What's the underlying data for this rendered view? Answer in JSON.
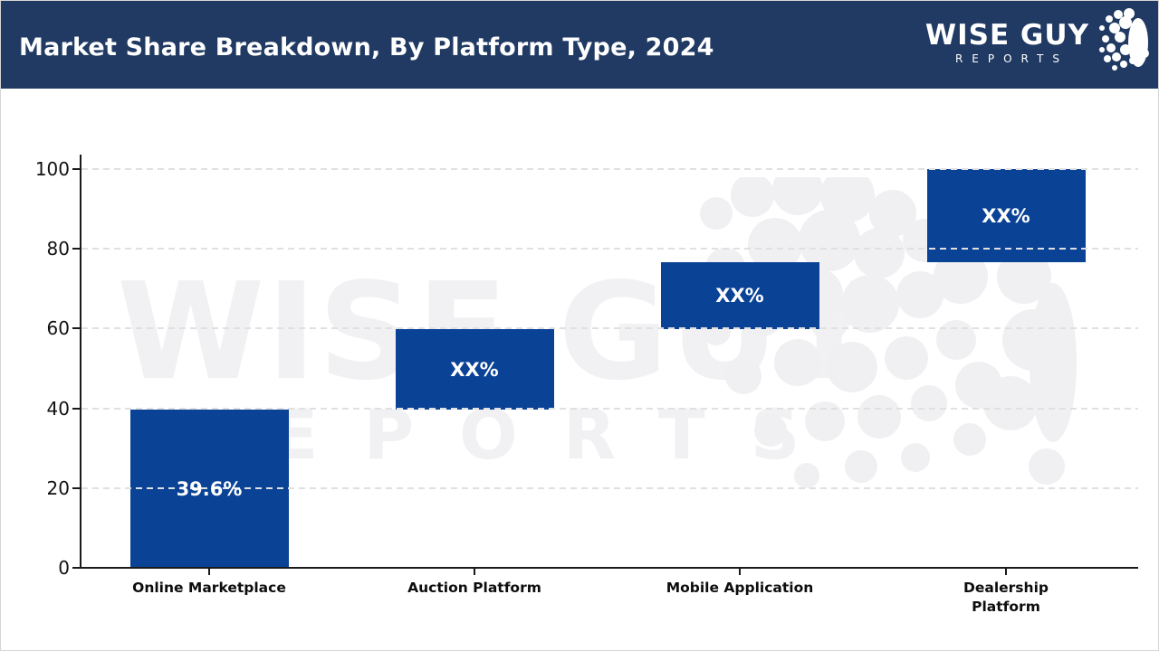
{
  "header": {
    "title": "Market Share Breakdown, By Platform Type, 2024",
    "bg_color": "#203a63",
    "logo": {
      "name": "Wise Guy Reports",
      "line1": "WISE GUY",
      "line2": "REPORTS"
    }
  },
  "watermark": {
    "line1": "WISE GUY",
    "line2": "REPORTS"
  },
  "chart_data": {
    "type": "bar",
    "subtype": "waterfall",
    "title": "Market Share Breakdown, By Platform Type, 2024",
    "categories": [
      "Online Marketplace",
      "Auction Platform",
      "Mobile Application",
      "Dealership\nPlatform"
    ],
    "segments": [
      {
        "category": "Online Marketplace",
        "start": 0,
        "end": 39.6,
        "label": "39.6%"
      },
      {
        "category": "Auction Platform",
        "start": 39.6,
        "end": 59.8,
        "label": "XX%"
      },
      {
        "category": "Mobile Application",
        "start": 59.8,
        "end": 76.6,
        "label": "XX%"
      },
      {
        "category": "Dealership Platform",
        "start": 76.6,
        "end": 100,
        "label": "XX%"
      }
    ],
    "bar_color": "#0a4296",
    "label_color": "#ffffff",
    "yticks": [
      0,
      20,
      40,
      60,
      80,
      100
    ],
    "ylim": [
      0,
      104
    ],
    "xlabel": "",
    "ylabel": "",
    "grid": true,
    "gridline_style": "dashed",
    "gridline_color": "#e0e0e0",
    "legend": false
  }
}
